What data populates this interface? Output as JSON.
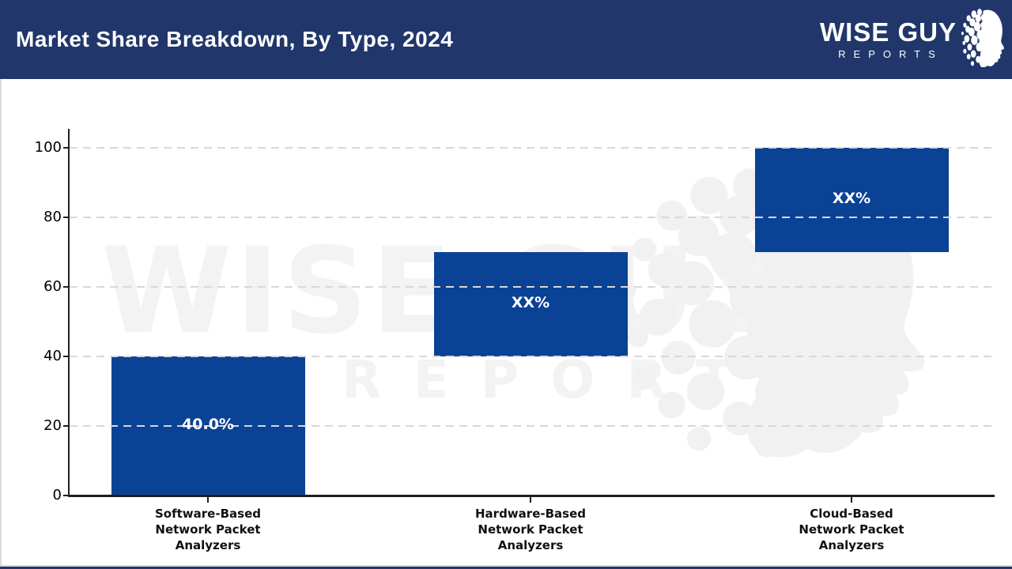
{
  "header": {
    "title": "Market Share Breakdown, By Type, 2024",
    "bg_color": "#21366a",
    "logo": {
      "line1": "WISE GUY",
      "line2": "REPORTS"
    }
  },
  "watermark": {
    "line1": "WISE GUY",
    "line2": "REPORTS",
    "color": "#f3f3f3"
  },
  "chart_data": {
    "type": "bar",
    "subtype": "floating-segment (waterfall-style) market share bars",
    "title": "Market Share Breakdown, By Type, 2024",
    "categories": [
      "Software-Based\nNetwork Packet\nAnalyzers",
      "Hardware-Based\nNetwork Packet\nAnalyzers",
      "Cloud-Based\nNetwork Packet\nAnalyzers"
    ],
    "segments": [
      {
        "start": 0,
        "end": 40,
        "label": "40.0%"
      },
      {
        "start": 40,
        "end": 70,
        "label": "XX%"
      },
      {
        "start": 70,
        "end": 100,
        "label": "XX%"
      }
    ],
    "ylim": [
      0,
      100
    ],
    "yticks": [
      0,
      20,
      40,
      60,
      80,
      100
    ],
    "grid": "dashed horizontal gridlines drawn over bars",
    "legend": "none",
    "xlabel": "",
    "ylabel": "",
    "bar_color": "#0a4296",
    "bar_label_color": "#ffffff",
    "axis_color": "#1f1f1f"
  }
}
